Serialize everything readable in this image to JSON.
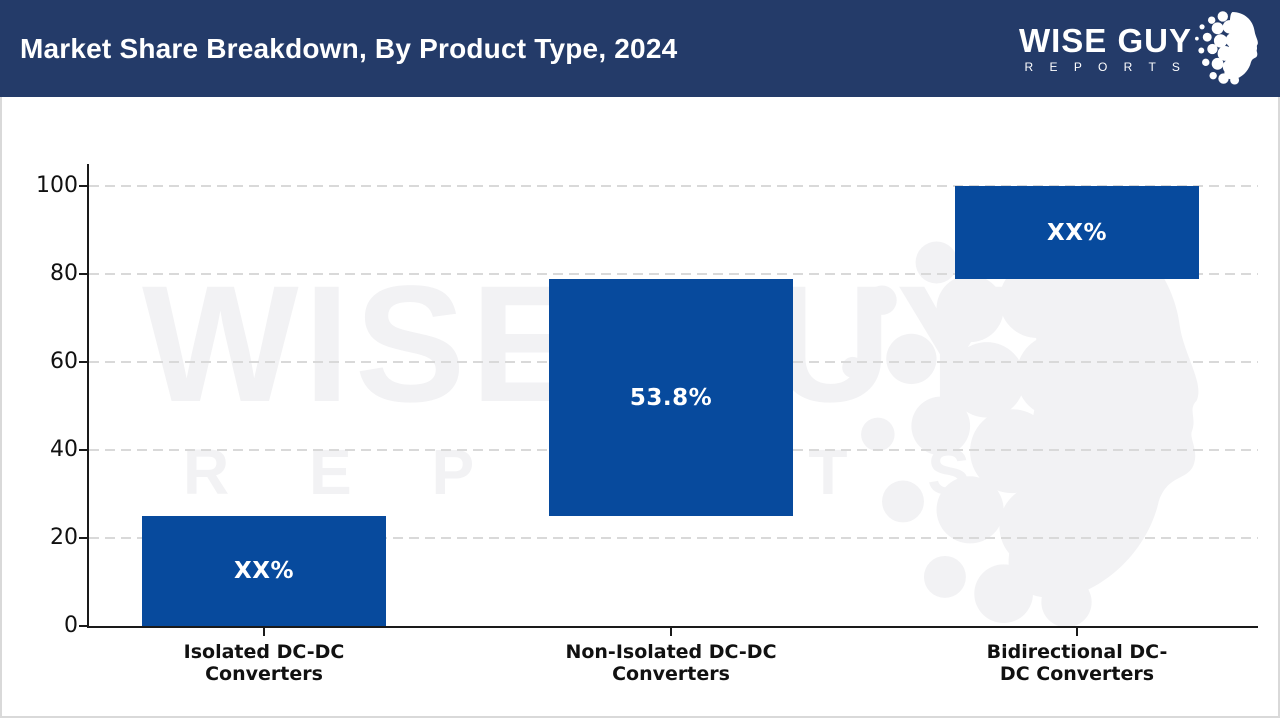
{
  "header": {
    "title": "Market Share Breakdown, By Product Type, 2024",
    "brand": {
      "line1": "WISE GUY",
      "line2": "R E P O R T S"
    },
    "bg_color": "#243b69"
  },
  "watermark": {
    "line1": "WISE GUY",
    "line2": "R E P O R T S"
  },
  "chart_data": {
    "type": "bar",
    "subtype": "waterfall",
    "title": "Market Share Breakdown, By Product Type, 2024",
    "categories": [
      [
        "Isolated DC-DC",
        "Converters"
      ],
      [
        "Non-Isolated DC-DC",
        "Converters"
      ],
      [
        "Bidirectional DC-",
        "DC Converters"
      ]
    ],
    "bars": [
      {
        "base": 0,
        "top": 25,
        "label": "XX%"
      },
      {
        "base": 25,
        "top": 78.8,
        "label": "53.8%"
      },
      {
        "base": 78.8,
        "top": 100,
        "label": "XX%"
      }
    ],
    "segment_heights_pct": [
      25,
      53.8,
      21.2
    ],
    "yticks": [
      0,
      20,
      40,
      60,
      80,
      100
    ],
    "ylim": [
      0,
      105
    ],
    "grid": {
      "axis": "y",
      "style": "dashed",
      "color": "#d9d9d9"
    },
    "legend": "none",
    "bar_color": "#074a9d",
    "bar_label_color": "#ffffff",
    "axis_color": "#1a1a1a"
  }
}
